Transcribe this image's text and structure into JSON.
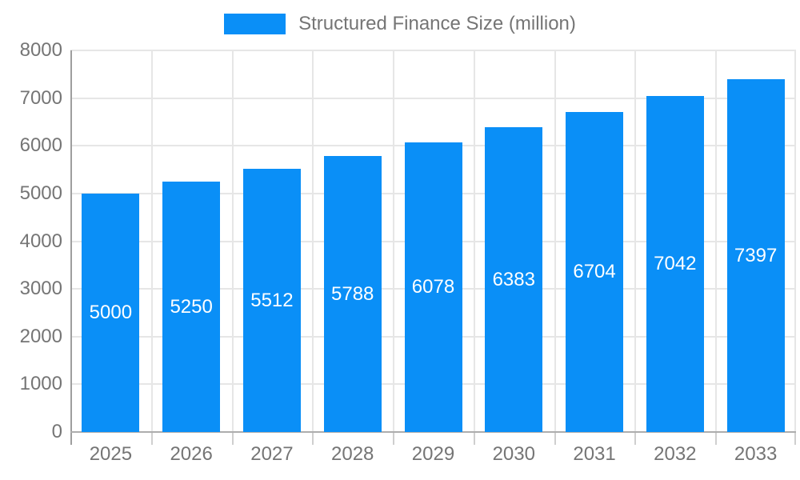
{
  "legend": {
    "label": "Structured Finance Size (million)",
    "swatch_color": "#0A8FF7"
  },
  "chart_data": {
    "type": "bar",
    "title": "Structured Finance Size (million)",
    "categories": [
      "2025",
      "2026",
      "2027",
      "2028",
      "2029",
      "2030",
      "2031",
      "2032",
      "2033"
    ],
    "values": [
      5000,
      5250,
      5512,
      5788,
      6078,
      6383,
      6704,
      7042,
      7397
    ],
    "xlabel": "",
    "ylabel": "",
    "ylim": [
      0,
      8000
    ],
    "yticks": [
      0,
      1000,
      2000,
      3000,
      4000,
      5000,
      6000,
      7000,
      8000
    ],
    "grid": true,
    "legend_position": "top",
    "bar_color": "#0A8FF7",
    "value_label_color": "#ffffff"
  },
  "colors": {
    "axis_label": "#757575",
    "gridline": "#e6e6e6",
    "axis_line": "#adadad",
    "background": "#ffffff"
  }
}
